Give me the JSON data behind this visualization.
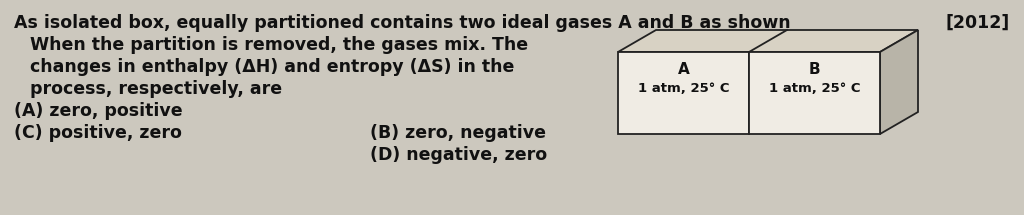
{
  "bg_color": "#ccc8be",
  "text_color": "#111111",
  "line1": "As isolated box, equally partitioned contains two ideal gases A and B as shown",
  "line2": "When the partition is removed, the gases mix. The",
  "line3": "changes in enthalpy (ΔH) and entropy (ΔS) in the",
  "line4": "process, respectively, are",
  "option_A": "(A) zero, positive",
  "option_C": "(C) positive, zero",
  "option_B": "(B) zero, negative",
  "option_D": "(D) negative, zero",
  "year_tag": "[2012]",
  "box_A_label": "A",
  "box_B_label": "B",
  "box_A_sub": "1 atm, 25° C",
  "box_B_sub": "1 atm, 25° C",
  "box_face_color": "#f0ece4",
  "box_top_color": "#d8d2c4",
  "box_right_color": "#b8b4a8",
  "box_outline_color": "#222222",
  "font_size_main": 12.5,
  "font_size_box_label": 11,
  "font_size_box_sub": 9.5,
  "font_size_year": 12.5
}
